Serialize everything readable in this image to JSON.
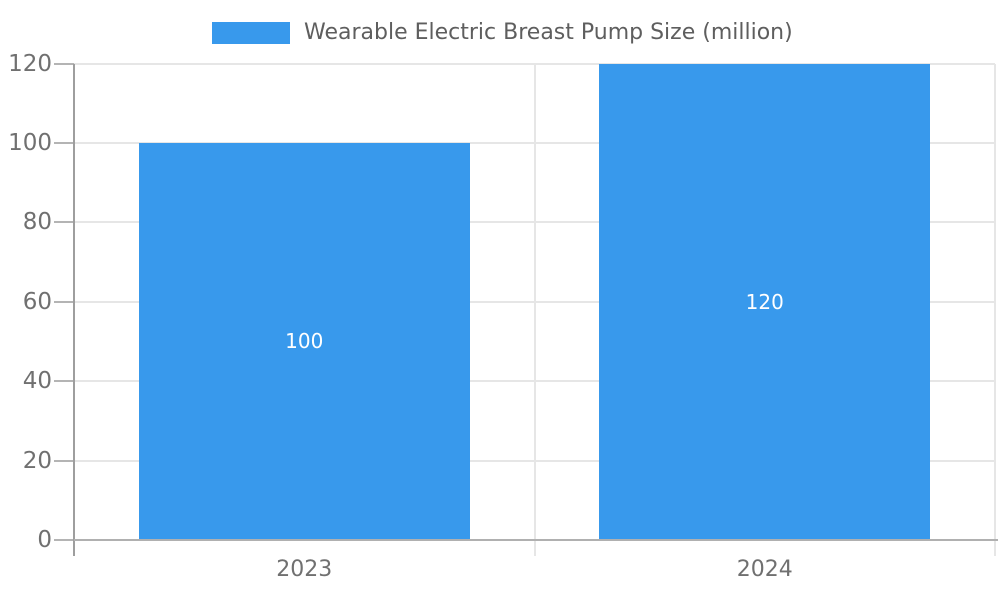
{
  "chart_data": {
    "type": "bar",
    "title": "Wearable Electric Breast Pump Size (million)",
    "categories": [
      "2023",
      "2024"
    ],
    "series": [
      {
        "name": "Wearable Electric Breast Pump Size (million)",
        "values": [
          100,
          120
        ]
      }
    ],
    "value_labels": [
      "100",
      "120"
    ],
    "xlabel": "",
    "ylabel": "",
    "ylim": [
      0,
      120
    ],
    "y_ticks": [
      0,
      20,
      40,
      60,
      80,
      100,
      120
    ],
    "grid": true,
    "legend_position": "top-center",
    "colors": {
      "bar": "#3899ec",
      "grid_line": "#e6e6e6",
      "y_axis_line": "#9e9e9e",
      "x_axis_line": "#b0b0b0",
      "tick_mark": "#b4b4b4",
      "axis_label_text": "#707070",
      "legend_text": "#5e5e5e",
      "value_label_text": "#ffffff",
      "background": "#ffffff"
    }
  }
}
